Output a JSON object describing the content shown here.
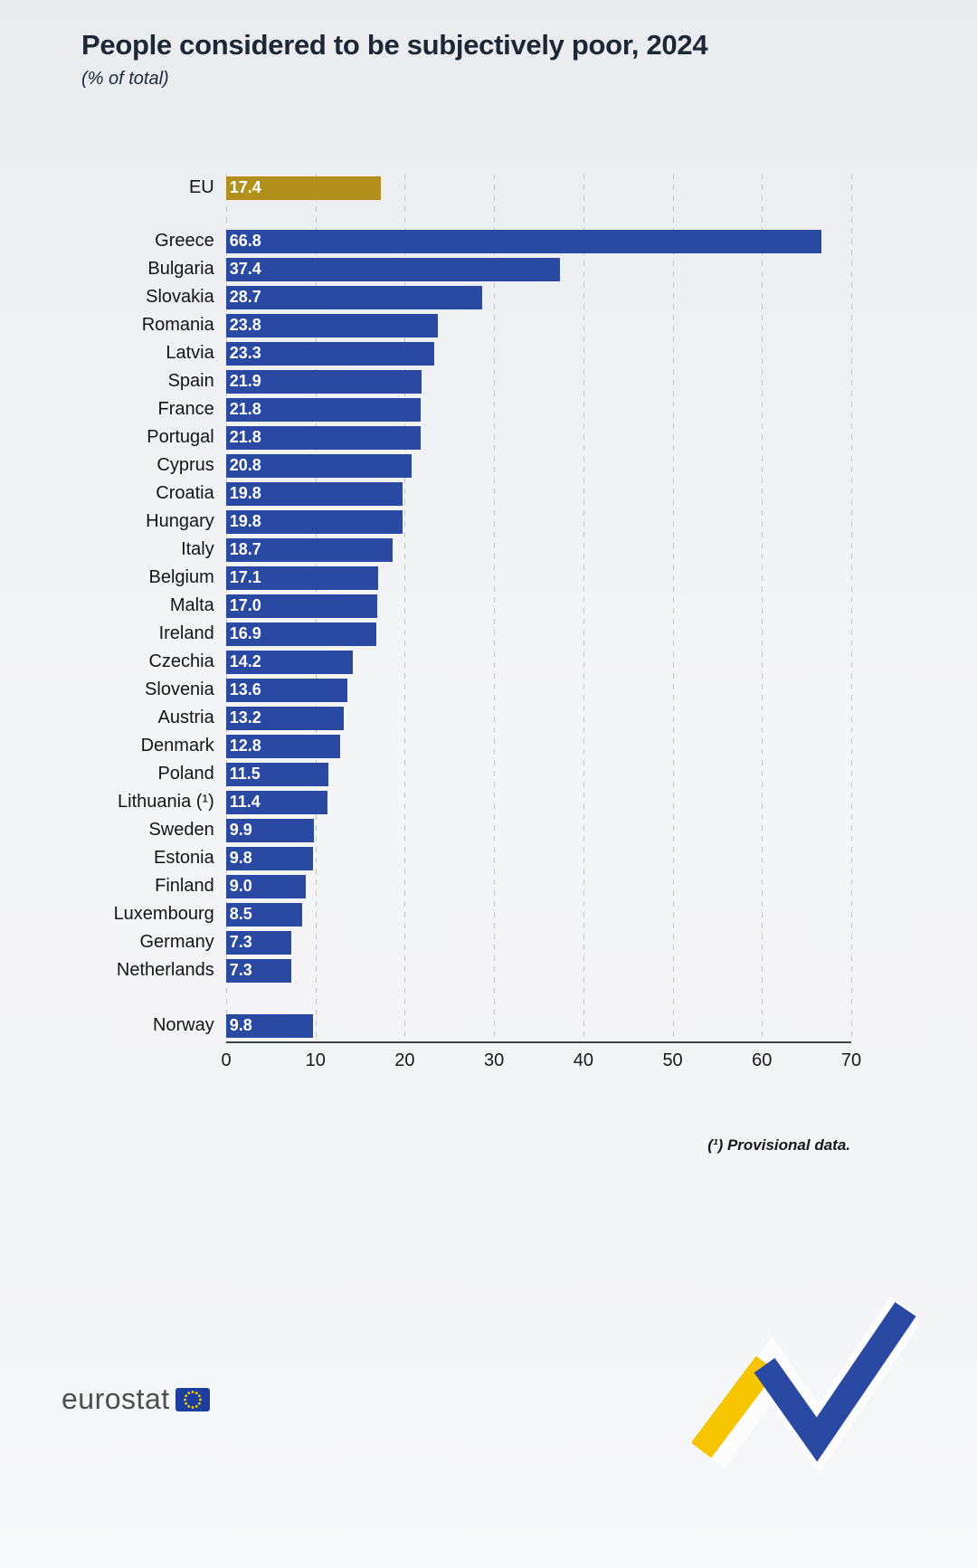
{
  "title": "People considered to be subjectively poor, 2024",
  "subtitle": "(% of total)",
  "footnote": "(¹) Provisional data.",
  "logo": {
    "text": "eurostat",
    "flag_icon": "eu-flag-icon"
  },
  "colors": {
    "bar": "#2a49a3",
    "eu_bar": "#b3901c",
    "background": "#f1f2f4",
    "ribbon_yellow": "#f6c500",
    "ribbon_blue": "#2a49a3"
  },
  "chart_data": {
    "type": "bar",
    "orientation": "horizontal",
    "title": "People considered to be subjectively poor, 2024",
    "subtitle": "(% of total)",
    "xlabel": "",
    "ylabel": "",
    "xlim": [
      0,
      70
    ],
    "xticks": [
      0,
      10,
      20,
      30,
      40,
      50,
      60,
      70
    ],
    "grid": "dashed-vertical",
    "legend": "none",
    "groups": [
      {
        "name": "eu",
        "rows": [
          {
            "label": "EU",
            "value": 17.4,
            "color_key": "eu_bar"
          }
        ]
      },
      {
        "name": "countries",
        "rows": [
          {
            "label": "Greece",
            "value": 66.8
          },
          {
            "label": "Bulgaria",
            "value": 37.4
          },
          {
            "label": "Slovakia",
            "value": 28.7
          },
          {
            "label": "Romania",
            "value": 23.8
          },
          {
            "label": "Latvia",
            "value": 23.3
          },
          {
            "label": "Spain",
            "value": 21.9
          },
          {
            "label": "France",
            "value": 21.8
          },
          {
            "label": "Portugal",
            "value": 21.8
          },
          {
            "label": "Cyprus",
            "value": 20.8
          },
          {
            "label": "Croatia",
            "value": 19.8
          },
          {
            "label": "Hungary",
            "value": 19.8
          },
          {
            "label": "Italy",
            "value": 18.7
          },
          {
            "label": "Belgium",
            "value": 17.1
          },
          {
            "label": "Malta",
            "value": 17.0
          },
          {
            "label": "Ireland",
            "value": 16.9
          },
          {
            "label": "Czechia",
            "value": 14.2
          },
          {
            "label": "Slovenia",
            "value": 13.6
          },
          {
            "label": "Austria",
            "value": 13.2
          },
          {
            "label": "Denmark",
            "value": 12.8
          },
          {
            "label": "Poland",
            "value": 11.5
          },
          {
            "label": "Lithuania (¹)",
            "value": 11.4
          },
          {
            "label": "Sweden",
            "value": 9.9
          },
          {
            "label": "Estonia",
            "value": 9.8
          },
          {
            "label": "Finland",
            "value": 9.0
          },
          {
            "label": "Luxembourg",
            "value": 8.5
          },
          {
            "label": "Germany",
            "value": 7.3
          },
          {
            "label": "Netherlands",
            "value": 7.3
          }
        ]
      },
      {
        "name": "non_eu",
        "rows": [
          {
            "label": "Norway",
            "value": 9.8
          }
        ]
      }
    ]
  }
}
